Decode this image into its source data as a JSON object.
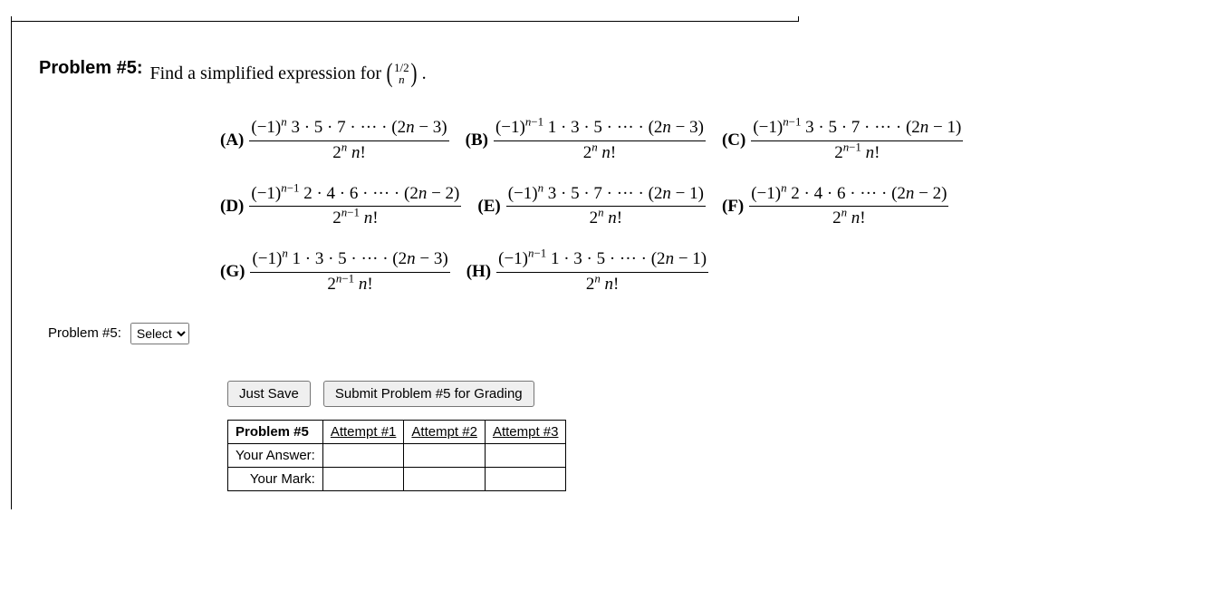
{
  "problem": {
    "title": "Problem #5:",
    "question_prefix": "Find a simplified expression for",
    "binom_top": "1/2",
    "binom_bottom": "n",
    "question_suffix": "."
  },
  "choices": {
    "A": {
      "num": "(−1)<sup><span class=\"it\">n</span></sup> 3 · 5 · 7 · ··· · (2<span class=\"it\">n</span> − 3)",
      "den": "2<sup><span class=\"it\">n</span></sup> <span class=\"it\">n</span>!"
    },
    "B": {
      "num": "(−1)<sup><span class=\"it\">n</span>−1</sup> 1 · 3 · 5 · ··· · (2<span class=\"it\">n</span> − 3)",
      "den": "2<sup><span class=\"it\">n</span></sup> <span class=\"it\">n</span>!"
    },
    "C": {
      "num": "(−1)<sup><span class=\"it\">n</span>−1</sup> 3 · 5 · 7 · ··· · (2<span class=\"it\">n</span> − 1)",
      "den": "2<sup><span class=\"it\">n</span>−1</sup> <span class=\"it\">n</span>!"
    },
    "D": {
      "num": "(−1)<sup><span class=\"it\">n</span>−1</sup> 2 · 4 · 6 · ··· · (2<span class=\"it\">n</span> − 2)",
      "den": "2<sup><span class=\"it\">n</span>−1</sup> <span class=\"it\">n</span>!"
    },
    "E": {
      "num": "(−1)<sup><span class=\"it\">n</span></sup> 3 · 5 · 7 · ··· · (2<span class=\"it\">n</span> − 1)",
      "den": "2<sup><span class=\"it\">n</span></sup> <span class=\"it\">n</span>!"
    },
    "F": {
      "num": "(−1)<sup><span class=\"it\">n</span></sup> 2 · 4 · 6 · ··· · (2<span class=\"it\">n</span> − 2)",
      "den": "2<sup><span class=\"it\">n</span></sup> <span class=\"it\">n</span>!"
    },
    "G": {
      "num": "(−1)<sup><span class=\"it\">n</span></sup> 1 · 3 · 5 · ··· · (2<span class=\"it\">n</span> − 3)",
      "den": "2<sup><span class=\"it\">n</span>−1</sup> <span class=\"it\">n</span>!"
    },
    "H": {
      "num": "(−1)<sup><span class=\"it\">n</span>−1</sup> 1 · 3 · 5 · ··· · (2<span class=\"it\">n</span> − 1)",
      "den": "2<sup><span class=\"it\">n</span></sup> <span class=\"it\">n</span>!"
    }
  },
  "select": {
    "label": "Problem #5:",
    "placeholder": "Select"
  },
  "buttons": {
    "save": "Just Save",
    "submit": "Submit Problem #5 for Grading"
  },
  "grade_table": {
    "header": "Problem #5",
    "attempts": [
      "Attempt #1",
      "Attempt #2",
      "Attempt #3"
    ],
    "rows": [
      "Your Answer:",
      "Your Mark:"
    ]
  }
}
